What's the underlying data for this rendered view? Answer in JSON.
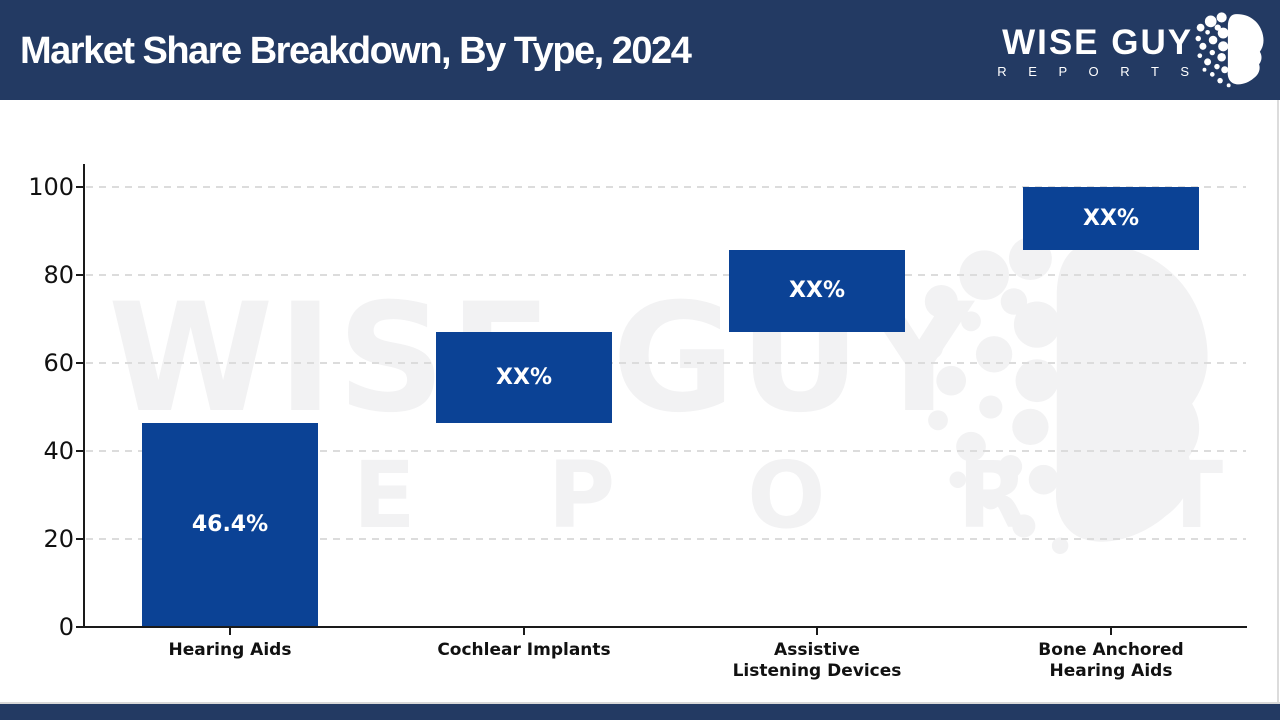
{
  "header": {
    "title": "Market Share Breakdown, By Type, 2024",
    "bg_color": "#233a63",
    "logo": {
      "wordmark": "WISE GUY",
      "subtitle": "R E P O R T S"
    }
  },
  "watermark": {
    "line1": "WISE GUY",
    "line2": "R E P O R T S"
  },
  "footer": {},
  "chart_data": {
    "type": "bar",
    "subtype": "waterfall-stacked-breakdown",
    "title": "Market Share Breakdown, By Type, 2024",
    "categories": [
      "Hearing Aids",
      "Cochlear Implants",
      "Assistive\nListening Devices",
      "Bone Anchored\nHearing Aids"
    ],
    "segments": [
      {
        "category": "Hearing Aids",
        "start": 0,
        "end": 46.4,
        "value_label": "46.4%"
      },
      {
        "category": "Cochlear Implants",
        "start": 46.4,
        "end": 67.1,
        "value_label": "XX%"
      },
      {
        "category": "Assistive Listening Devices",
        "start": 67.1,
        "end": 85.7,
        "value_label": "XX%"
      },
      {
        "category": "Bone Anchored Hearing Aids",
        "start": 85.7,
        "end": 100,
        "value_label": "XX%"
      }
    ],
    "yticks": [
      0,
      20,
      40,
      60,
      80,
      100
    ],
    "ylim": [
      0,
      105
    ],
    "xlabel": "",
    "ylabel": "",
    "grid": "horizontal-dashed",
    "bar_color": "#0b4295",
    "value_label_color": "#ffffff",
    "axis_color": "#1a1a1a",
    "gridline_color": "#dcdcdc"
  }
}
